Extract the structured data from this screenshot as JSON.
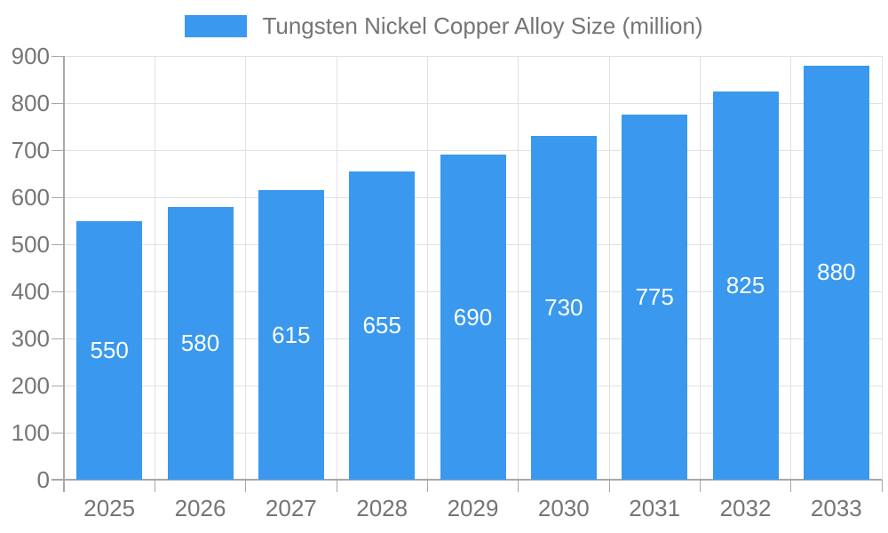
{
  "legend": {
    "label": "Tungsten Nickel Copper Alloy Size (million)"
  },
  "chart_data": {
    "type": "bar",
    "title": "Tungsten Nickel Copper Alloy Size (million)",
    "categories": [
      "2025",
      "2026",
      "2027",
      "2028",
      "2029",
      "2030",
      "2031",
      "2032",
      "2033"
    ],
    "values": [
      550,
      580,
      615,
      655,
      690,
      730,
      775,
      825,
      880
    ],
    "xlabel": "",
    "ylabel": "",
    "ylim": [
      0,
      900
    ],
    "yticks": [
      0,
      100,
      200,
      300,
      400,
      500,
      600,
      700,
      800,
      900
    ],
    "grid": true,
    "legend_position": "top-center",
    "value_labels": "inside-center",
    "colors": {
      "bar": "#3A99EE",
      "grid": "#E1E1E1",
      "axis": "#A8A8A8",
      "label": "#757575",
      "value_label": "#FFFFFF",
      "background": "#FFFFFF"
    }
  }
}
